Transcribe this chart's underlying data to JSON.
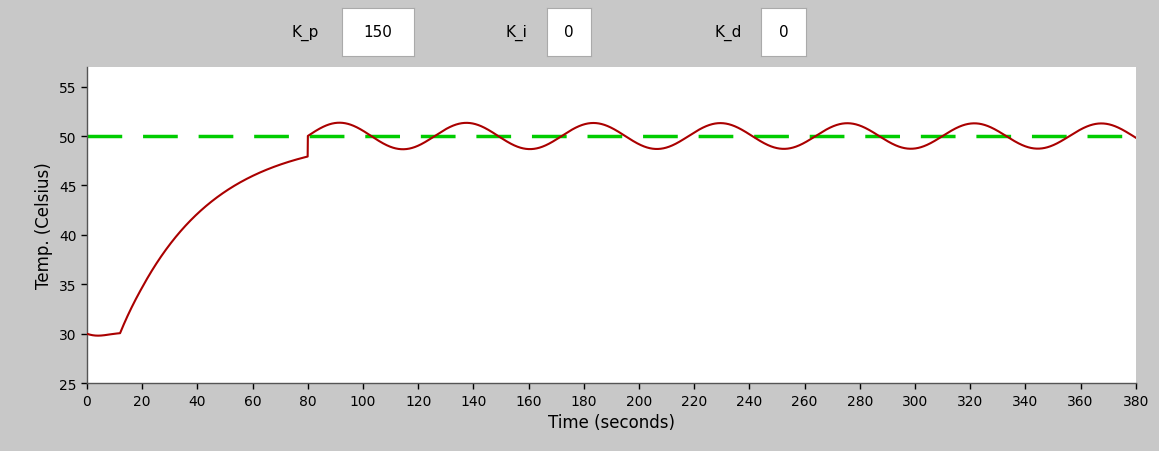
{
  "title": "",
  "xlabel": "Time (seconds)",
  "ylabel": "Temp. (Celsius)",
  "xlim": [
    0,
    380
  ],
  "ylim": [
    25,
    57
  ],
  "yticks": [
    25,
    30,
    35,
    40,
    45,
    50,
    55
  ],
  "xticks": [
    0,
    20,
    40,
    60,
    80,
    100,
    120,
    140,
    160,
    180,
    200,
    220,
    240,
    260,
    280,
    300,
    320,
    340,
    360,
    380
  ],
  "setpoint": 50,
  "background_color": "#c8c8c8",
  "plot_bg_color": "#ffffff",
  "line_color": "#aa0000",
  "setpoint_color": "#00cc00",
  "kp_label": "K_p",
  "kp_value": "150",
  "ki_label": "K_i",
  "ki_value": "0",
  "kd_label": "K_d",
  "kd_value": "0",
  "start_temp": 30,
  "setpoint_temp": 50,
  "dip_time": 10,
  "dip_depth": 0.3,
  "rise_tau": 30,
  "rise_delay": 12,
  "oscillation_amplitude": 1.35,
  "oscillation_period": 46,
  "oscillation_start_t": 80,
  "oscillation_decay": 600,
  "dashed_on": 10,
  "dashed_off": 6
}
